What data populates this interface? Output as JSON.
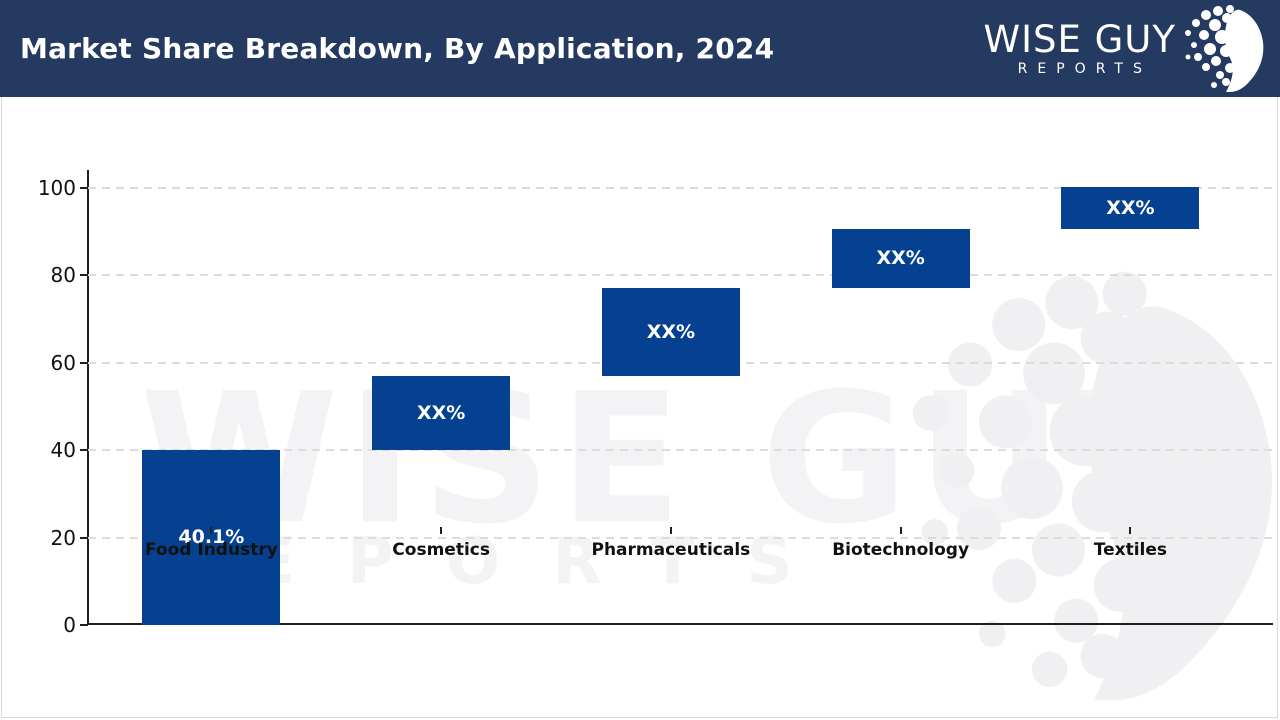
{
  "header": {
    "title": "Market Share Breakdown, By Application, 2024",
    "logo": {
      "line1": "WISE GUY",
      "line2": "REPORTS"
    },
    "bg_color": "#243a60"
  },
  "watermark": {
    "line1": "WISE GUY",
    "line2": "REPORTS"
  },
  "chart_data": {
    "type": "bar",
    "subtype": "floating-waterfall",
    "title": "Market Share Breakdown, By Application, 2024",
    "categories": [
      "Food Industry",
      "Cosmetics",
      "Pharmaceuticals",
      "Biotechnology",
      "Textiles"
    ],
    "segments": [
      {
        "category": "Food Industry",
        "start": 0,
        "end": 40.1,
        "label": "40.1%"
      },
      {
        "category": "Cosmetics",
        "start": 40.1,
        "end": 57.0,
        "label": "XX%"
      },
      {
        "category": "Pharmaceuticals",
        "start": 57.0,
        "end": 77.2,
        "label": "XX%"
      },
      {
        "category": "Biotechnology",
        "start": 77.2,
        "end": 90.6,
        "label": "XX%"
      },
      {
        "category": "Textiles",
        "start": 90.6,
        "end": 100.3,
        "label": "XX%"
      }
    ],
    "yticks": [
      0,
      20,
      40,
      60,
      80,
      100
    ],
    "ylim": [
      0,
      105
    ],
    "grid": true,
    "grid_style": "dashed",
    "xlabel": "",
    "ylabel": "",
    "bar_color": "#054190",
    "label_color": "#ffffff",
    "legend": "none"
  }
}
